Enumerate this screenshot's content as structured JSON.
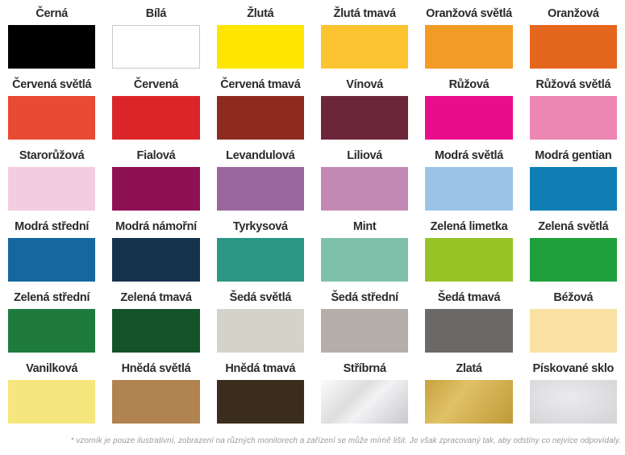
{
  "swatches": [
    {
      "name": "cerna",
      "label": "Černá",
      "color": "#000000"
    },
    {
      "name": "bila",
      "label": "Bílá",
      "color": "#ffffff",
      "border": "1px solid #c9c9c9"
    },
    {
      "name": "zluta",
      "label": "Žlutá",
      "color": "#ffe600"
    },
    {
      "name": "zluta-tmava",
      "label": "Žlutá tmavá",
      "color": "#fcc430"
    },
    {
      "name": "oranzova-svetla",
      "label": "Oranžová světlá",
      "color": "#f29c26"
    },
    {
      "name": "oranzova",
      "label": "Oranžová",
      "color": "#e5661e"
    },
    {
      "name": "cervena-svetla",
      "label": "Červená světlá",
      "color": "#e94a32"
    },
    {
      "name": "cervena",
      "label": "Červená",
      "color": "#db2528"
    },
    {
      "name": "cervena-tmava",
      "label": "Červená tmavá",
      "color": "#8e2a1f"
    },
    {
      "name": "vinova",
      "label": "Vínová",
      "color": "#6c2639"
    },
    {
      "name": "ruzova",
      "label": "Růžová",
      "color": "#e90c8c"
    },
    {
      "name": "ruzova-svetla",
      "label": "Růžová světlá",
      "color": "#ed86b3"
    },
    {
      "name": "staroruzova",
      "label": "Starorůžová",
      "color": "#f4ccdf"
    },
    {
      "name": "fialova",
      "label": "Fialová",
      "color": "#8e1155"
    },
    {
      "name": "levandulova",
      "label": "Levandulová",
      "color": "#99679e"
    },
    {
      "name": "liliova",
      "label": "Liliová",
      "color": "#c389b5"
    },
    {
      "name": "modra-svetla",
      "label": "Modrá světlá",
      "color": "#9cc3e6"
    },
    {
      "name": "modra-gentian",
      "label": "Modrá gentian",
      "color": "#107eb4"
    },
    {
      "name": "modra-stredni",
      "label": "Modrá střední",
      "color": "#15689f"
    },
    {
      "name": "modra-namorni",
      "label": "Modrá námořní",
      "color": "#16334e"
    },
    {
      "name": "tyrkysova",
      "label": "Tyrkysová",
      "color": "#2a9683"
    },
    {
      "name": "mint",
      "label": "Mint",
      "color": "#7fc0ab"
    },
    {
      "name": "zelena-limetka",
      "label": "Zelená limetka",
      "color": "#98c326"
    },
    {
      "name": "zelena-svetla",
      "label": "Zelená světlá",
      "color": "#1fa03c"
    },
    {
      "name": "zelena-stredni",
      "label": "Zelená střední",
      "color": "#1e7b3d"
    },
    {
      "name": "zelena-tmava",
      "label": "Zelená tmavá",
      "color": "#145327"
    },
    {
      "name": "seda-svetla",
      "label": "Šedá světlá",
      "color": "#d5d2ca"
    },
    {
      "name": "seda-stredni",
      "label": "Šedá střední",
      "color": "#b3afa8"
    },
    {
      "name": "seda-tmava",
      "label": "Šedá tmavá",
      "color": "#6a6965"
    },
    {
      "name": "bezova",
      "label": "Béžová",
      "color": "#f8e1a3"
    },
    {
      "name": "vanilkova",
      "label": "Vanilková",
      "color": "#f5e67e"
    },
    {
      "name": "hneda-svetla",
      "label": "Hnědá světlá",
      "color": "#b18350"
    },
    {
      "name": "hneda-tmava",
      "label": "Hnědá tmavá",
      "color": "#3b2d1b"
    },
    {
      "name": "stribrna",
      "label": "Stříbrná",
      "color": "linear-gradient(135deg, #fbfbfc 0%, #dededd 38%, #f2f2f4 55%, #c8c8cd 100%)"
    },
    {
      "name": "zlata",
      "label": "Zlatá",
      "color": "linear-gradient(128deg, #c6a23c 0%, #e0c167 38%, #d3b254 62%, #bf9b36 100%)"
    },
    {
      "name": "piskovane-sklo",
      "label": "Pískované sklo",
      "color": "radial-gradient(ellipse at 45% 40%, #ebebed 0%, #dedee0 55%, #d3d3d6 100%)"
    }
  ],
  "footer": {
    "note": "* vzorník je pouze ilustrativní, zobrazení na různých monitorech a zařízení se může mírně lišit. Je však zpracovaný tak, aby odstíny co nejvíce odpovídaly."
  }
}
